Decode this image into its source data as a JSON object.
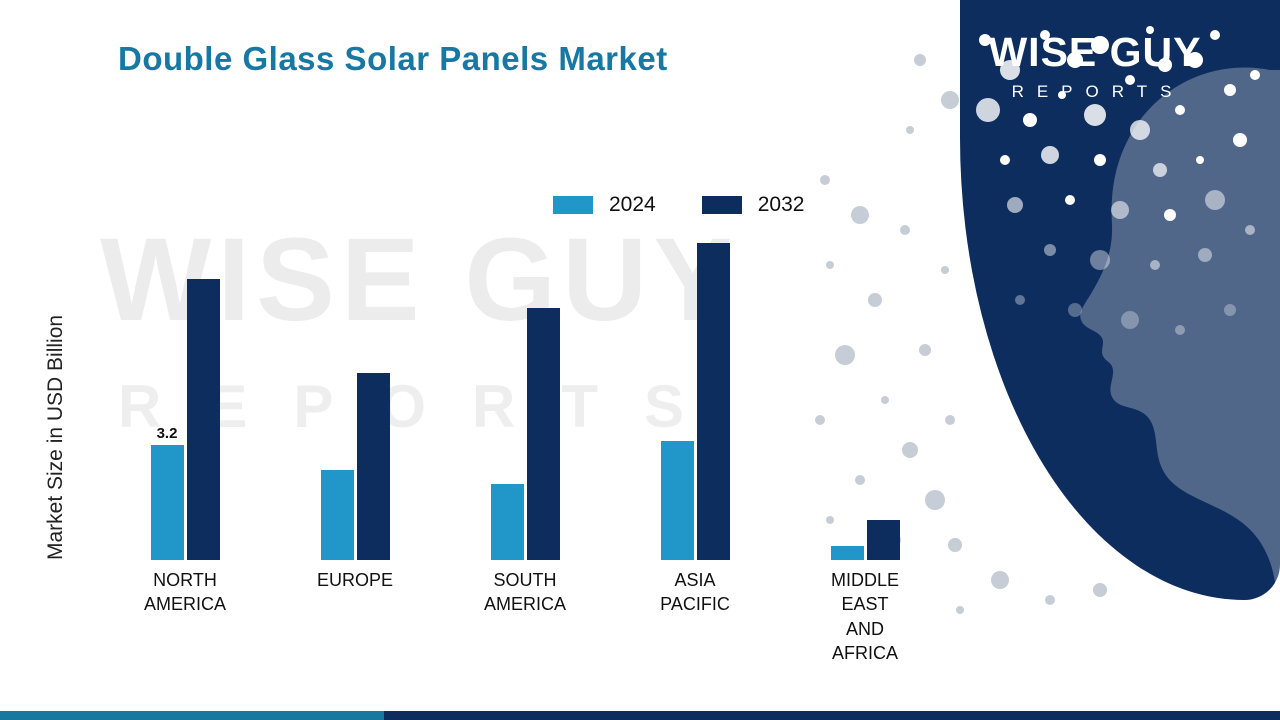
{
  "title": "Double Glass Solar Panels Market",
  "brand": {
    "name": "WISE GUY",
    "reports": "REPORTS",
    "panel_color": "#0d2d5e"
  },
  "watermark": {
    "line1": "WISE GUY",
    "line2": "REPORTS"
  },
  "chart_data": {
    "type": "bar",
    "title": "Double Glass Solar Panels Market",
    "categories": [
      "NORTH AMERICA",
      "EUROPE",
      "SOUTH AMERICA",
      "ASIA PACIFIC",
      "MIDDLE EAST AND AFRICA"
    ],
    "series": [
      {
        "name": "2024",
        "color": "#2196c9",
        "values": [
          3.2,
          2.5,
          2.1,
          3.3,
          0.4
        ]
      },
      {
        "name": "2032",
        "color": "#0d2d5e",
        "values": [
          7.8,
          5.2,
          7.0,
          8.8,
          1.1
        ]
      }
    ],
    "xlabel": "",
    "ylabel": "Market Size in USD Billion",
    "ylim": [
      0,
      10
    ],
    "grid": false,
    "legend_position": "top",
    "annotations": [
      {
        "category": "NORTH AMERICA",
        "series": "2024",
        "text": "3.2"
      }
    ]
  },
  "colors": {
    "title": "#1779a3",
    "footer_left": "#17799e",
    "footer_right": "#0d2d5e"
  }
}
